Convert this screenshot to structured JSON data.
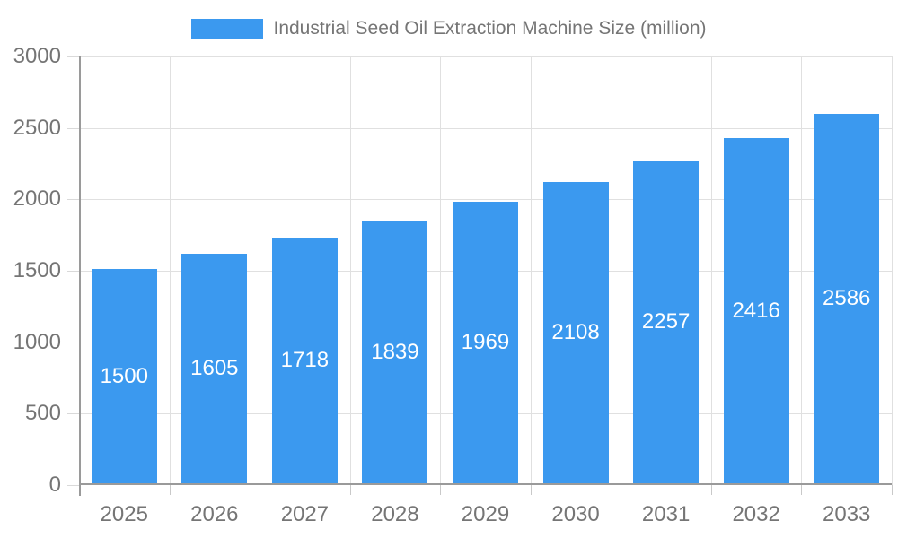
{
  "legend": {
    "label": "Industrial Seed Oil Extraction Machine Size (million)",
    "swatch_color": "#3b99ef"
  },
  "chart_data": {
    "type": "bar",
    "title": "Industrial Seed Oil Extraction Machine Size (million)",
    "categories": [
      "2025",
      "2026",
      "2027",
      "2028",
      "2029",
      "2030",
      "2031",
      "2032",
      "2033"
    ],
    "series": [
      {
        "name": "Industrial Seed Oil Extraction Machine Size (million)",
        "values": [
          1500,
          1605,
          1718,
          1839,
          1969,
          2108,
          2257,
          2416,
          2586
        ]
      }
    ],
    "xlabel": "",
    "ylabel": "",
    "ylim": [
      0,
      3000
    ],
    "yticks": [
      0,
      500,
      1000,
      1500,
      2000,
      2500,
      3000
    ],
    "grid": true,
    "bar_labels_visible": true,
    "legend_position": "top-center"
  },
  "colors": {
    "bar": "#3b99ef",
    "bar_label": "#ffffff",
    "grid": "#e0e0e0",
    "axis": "#9a9a9a",
    "tick_y": "#d9d9d9",
    "tick_x": "#c9c9c9",
    "text": "#757575",
    "background": "#ffffff"
  }
}
